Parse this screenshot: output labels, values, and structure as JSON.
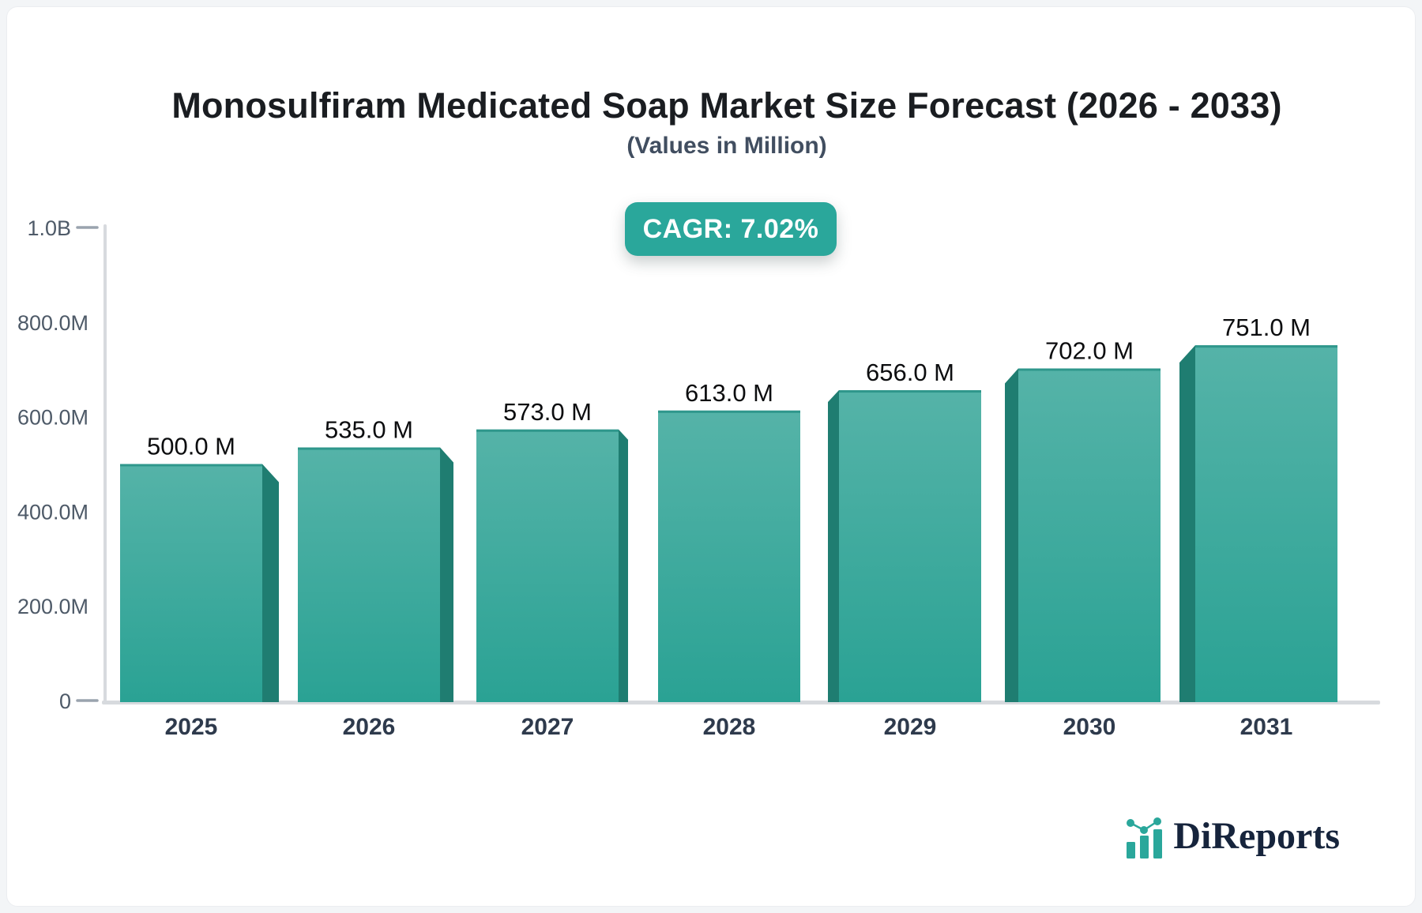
{
  "page": {
    "background": "#f3f5f7",
    "card_background": "#ffffff"
  },
  "header": {
    "title": "Monosulfiram Medicated Soap Market Size Forecast (2026 - 2033)",
    "subtitle": "(Values in Million)"
  },
  "badge": {
    "label": "CAGR: 7.02%",
    "background": "#2aa79b",
    "text_color": "#ffffff"
  },
  "chart_data": {
    "type": "bar",
    "title": "Monosulfiram Medicated Soap Market Size Forecast (2026 - 2033)",
    "subtitle": "(Values in Million)",
    "categories": [
      "2025",
      "2026",
      "2027",
      "2028",
      "2029",
      "2030",
      "2031"
    ],
    "values": [
      500,
      535,
      573,
      613,
      656,
      702,
      751
    ],
    "value_labels": [
      "500.0 M",
      "535.0 M",
      "573.0 M",
      "613.0 M",
      "656.0 M",
      "702.0 M",
      "751.0 M"
    ],
    "unit": "Million",
    "ylim": [
      0,
      1000
    ],
    "y_ticks": [
      {
        "value": 0,
        "label": "0",
        "dash": true
      },
      {
        "value": 200,
        "label": "200.0M",
        "dash": false
      },
      {
        "value": 400,
        "label": "400.0M",
        "dash": false
      },
      {
        "value": 600,
        "label": "600.0M",
        "dash": false
      },
      {
        "value": 800,
        "label": "800.0M",
        "dash": false
      },
      {
        "value": 1000,
        "label": "1.0B",
        "dash": true
      }
    ],
    "grid": false,
    "legend": false,
    "colors": {
      "bar_top": "#55b3a8",
      "bar_bottom": "#2aa294",
      "bar_edge": "#2b9488",
      "bar_side": "#1f7d71",
      "axis_line": "#d7dade",
      "tick_dash": "#9aa3ae"
    }
  },
  "footer_logo": {
    "icon": "bar-chart-trend-icon",
    "text": "DiReports",
    "accent": "#2aa79b",
    "text_color": "#16243c"
  }
}
